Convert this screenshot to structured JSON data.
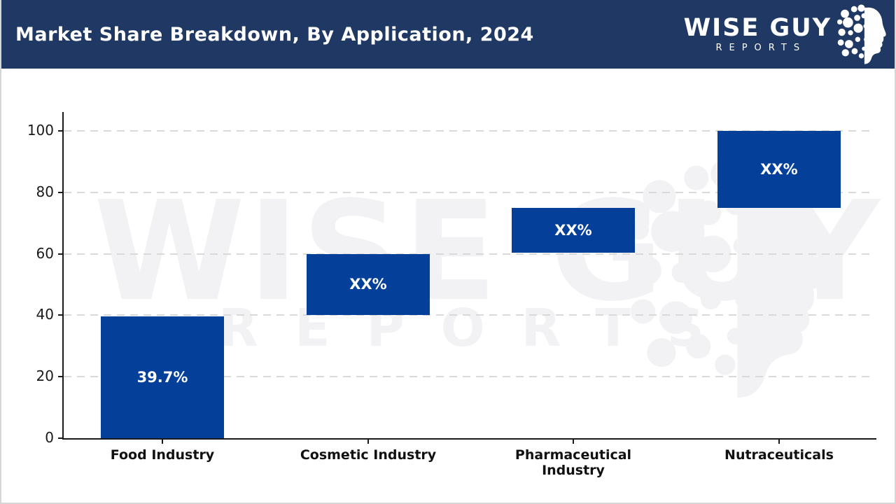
{
  "header": {
    "title": "Market Share Breakdown, By Application, 2024",
    "logo": {
      "line1": "WISE GUY",
      "line2": "REPORTS"
    }
  },
  "watermark": {
    "line1": "WISE GUY",
    "line2": "REPORTS"
  },
  "chart_data": {
    "type": "bar",
    "subtype": "waterfall",
    "title": "Market Share Breakdown, By Application, 2024",
    "categories": [
      "Food Industry",
      "Cosmetic Industry",
      "Pharmaceutical Industry",
      "Nutraceuticals"
    ],
    "series": [
      {
        "name": "Market Share",
        "segments": [
          {
            "category": "Food Industry",
            "start": 0,
            "end": 39.7,
            "label": "39.7%"
          },
          {
            "category": "Cosmetic Industry",
            "start": 40.2,
            "end": 60,
            "label": "XX%"
          },
          {
            "category": "Pharmaceutical Industry",
            "start": 60.4,
            "end": 75,
            "label": "XX%"
          },
          {
            "category": "Nutraceuticals",
            "start": 75,
            "end": 100,
            "label": "XX%"
          }
        ]
      }
    ],
    "xlabel": "",
    "ylabel": "",
    "ylim": [
      0,
      100
    ],
    "yticks": [
      0,
      20,
      40,
      60,
      80,
      100
    ],
    "grid": "horizontal-dashed",
    "legend": "none"
  },
  "colors": {
    "header_bg": "#1f3864",
    "bar": "#04409a",
    "bar_label": "#ffffff",
    "grid": "#d9d9d9",
    "axis": "#1a1a1a",
    "watermark": "#f2f2f4"
  }
}
